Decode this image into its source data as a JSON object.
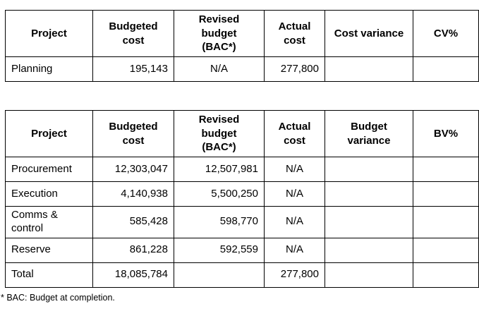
{
  "tables": [
    {
      "title": "cost-variance-table",
      "headers": [
        "Project",
        "Budgeted\ncost",
        "Revised\nbudget\n(BAC*)",
        "Actual\ncost",
        "Cost variance",
        "CV%"
      ],
      "rows": [
        [
          "Planning",
          "195,143",
          "N/A",
          "277,800",
          "",
          ""
        ]
      ]
    },
    {
      "title": "budget-variance-table",
      "headers": [
        "Project",
        "Budgeted\ncost",
        "Revised\nbudget\n(BAC*)",
        "Actual\ncost",
        "Budget\nvariance",
        "BV%"
      ],
      "rows": [
        [
          "Procurement",
          "12,303,047",
          "12,507,981",
          "N/A",
          "",
          ""
        ],
        [
          "Execution",
          "4,140,938",
          "5,500,250",
          "N/A",
          "",
          ""
        ],
        [
          "Comms &\ncontrol",
          "585,428",
          "598,770",
          "N/A",
          "",
          ""
        ],
        [
          "Reserve",
          "861,228",
          "592,559",
          "N/A",
          "",
          ""
        ],
        [
          "Total",
          "18,085,784",
          "",
          "277,800",
          "",
          ""
        ]
      ]
    }
  ],
  "footnote": "* BAC: Budget at completion."
}
